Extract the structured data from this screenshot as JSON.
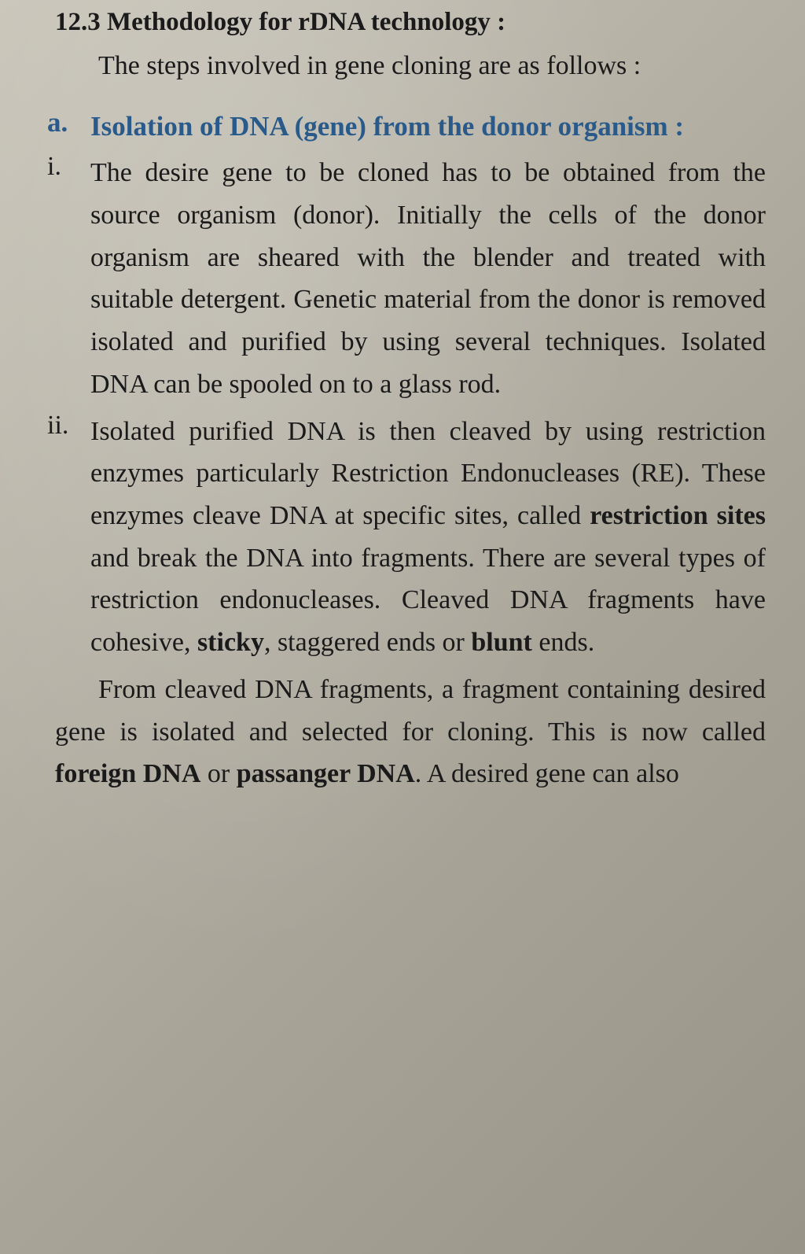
{
  "section": {
    "number": "12.3",
    "title": "Methodology for rDNA technology :"
  },
  "intro": "The steps involved in gene cloning are as follows :",
  "subheading": {
    "marker": "a.",
    "text": "Isolation of DNA (gene) from the donor organism :"
  },
  "items": [
    {
      "marker": "i.",
      "text_parts": [
        {
          "text": "The desire gene to be cloned has to be obtained from the source organism (donor). Initially the cells of the donor organism are sheared with the blender and treated with suitable detergent. Genetic material from the donor is removed isolated and purified by using several techniques. Isolated DNA can be spooled on to a glass rod.",
          "bold": false
        }
      ]
    },
    {
      "marker": "ii.",
      "text_parts": [
        {
          "text": "Isolated purified DNA is then cleaved by using restriction enzymes particularly Restriction Endonucleases (RE). These enzymes cleave DNA at specific sites, called ",
          "bold": false
        },
        {
          "text": "restriction sites",
          "bold": true
        },
        {
          "text": " and break the DNA into fragments. There are several types of restriction endonucleases. Cleaved DNA fragments have cohesive, ",
          "bold": false
        },
        {
          "text": "sticky",
          "bold": true
        },
        {
          "text": ", staggered ends or ",
          "bold": false
        },
        {
          "text": "blunt",
          "bold": true
        },
        {
          "text": " ends.",
          "bold": false
        }
      ]
    }
  ],
  "continuation_parts": [
    {
      "text": "From cleaved DNA fragments, a fragment containing desired gene is isolated and selected for cloning. This is now called ",
      "bold": false
    },
    {
      "text": "foreign DNA",
      "bold": true
    },
    {
      "text": " or ",
      "bold": false
    },
    {
      "text": "passanger DNA",
      "bold": true
    },
    {
      "text": ". A desired gene can also",
      "bold": false
    }
  ],
  "colors": {
    "heading": "#2a5a8a",
    "body": "#1a1a1a",
    "background_start": "#c8c4b8",
    "background_end": "#989488"
  },
  "typography": {
    "body_fontsize": 34,
    "heading_fontsize": 35,
    "title_fontsize": 33,
    "line_height": 1.58,
    "font_family": "Georgia, Times New Roman, serif"
  }
}
